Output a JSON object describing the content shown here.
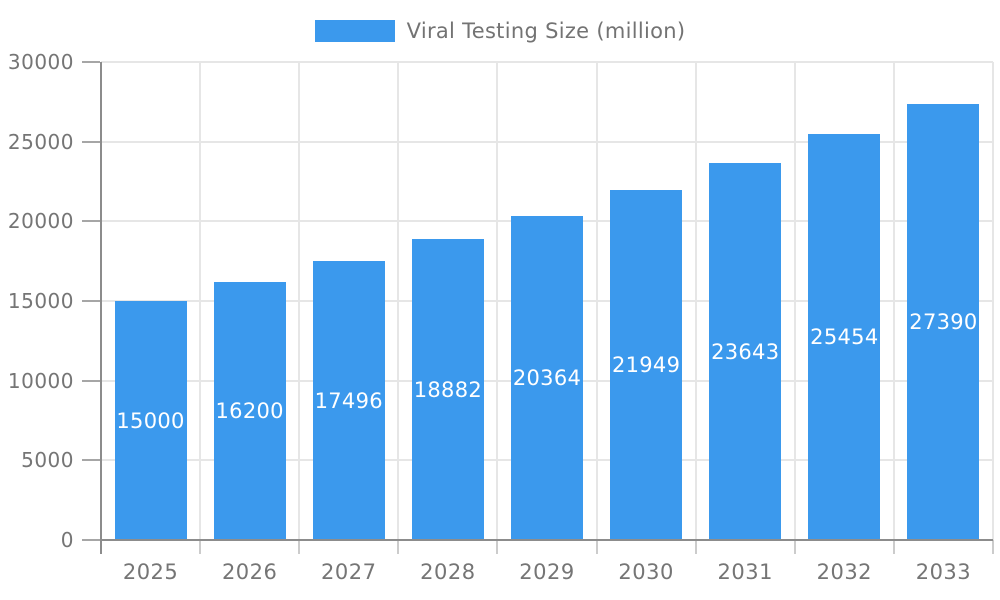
{
  "chart_data": {
    "type": "bar",
    "title": "Viral Testing Size (million)",
    "legend": {
      "position": "top",
      "label": "Viral Testing Size (million)"
    },
    "categories": [
      "2025",
      "2026",
      "2027",
      "2028",
      "2029",
      "2030",
      "2031",
      "2032",
      "2033"
    ],
    "values": [
      15000,
      16200,
      17496,
      18882,
      20364,
      21949,
      23643,
      25454,
      27390
    ],
    "value_labels": [
      "15000",
      "16200",
      "17496",
      "18882",
      "20364",
      "21949",
      "23643",
      "25454",
      "27390"
    ],
    "value_label_placement": "inside-center",
    "xlabel": "",
    "ylabel": "",
    "ylim": [
      0,
      30000
    ],
    "y_ticks": [
      0,
      5000,
      10000,
      15000,
      20000,
      25000,
      30000
    ],
    "y_tick_labels": [
      "0",
      "5000",
      "10000",
      "15000",
      "20000",
      "25000",
      "30000"
    ],
    "grid": "horizontal-and-vertical-boundaries",
    "colors": {
      "bar": "#3B99ED",
      "value_label": "#FFFFFF",
      "axis_text": "#757575",
      "legend_text": "#737373",
      "axis_line": "#8C8C8C",
      "y_tick": "#A6A6A6",
      "x_tick": "#CCCCCC",
      "gridline": "#E6E6E6",
      "background": "#FFFFFF"
    }
  }
}
